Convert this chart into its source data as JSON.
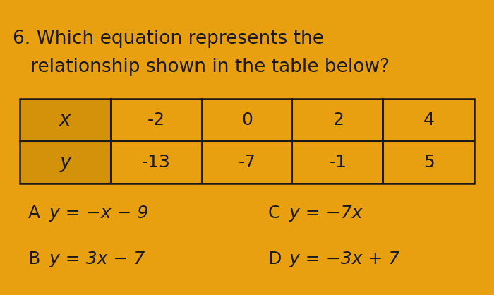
{
  "background_color": "#E8A010",
  "question_number": "6.",
  "question_line1": " Which equation represents the",
  "question_line2": "   relationship shown in the table below?",
  "table_x_label": "x",
  "table_y_label": "y",
  "table_x_values": [
    "-2",
    "0",
    "2",
    "4"
  ],
  "table_y_values": [
    "-13",
    "-7",
    "-1",
    "5"
  ],
  "text_color": "#1A1A1A",
  "table_border_color": "#1A1A1A",
  "table_cell_bg": "#E8A010",
  "table_header_bg": "#D4920A",
  "font_size_question": 19,
  "font_size_table": 18,
  "font_size_options": 18,
  "option_A_label": "A",
  "option_A_eq": " y = −x − 9",
  "option_B_label": "B",
  "option_B_eq": " y = 3x − 7",
  "option_C_label": "C",
  "option_C_eq": " y = −7x",
  "option_D_label": "D",
  "option_D_eq": " y = −3x + 7"
}
